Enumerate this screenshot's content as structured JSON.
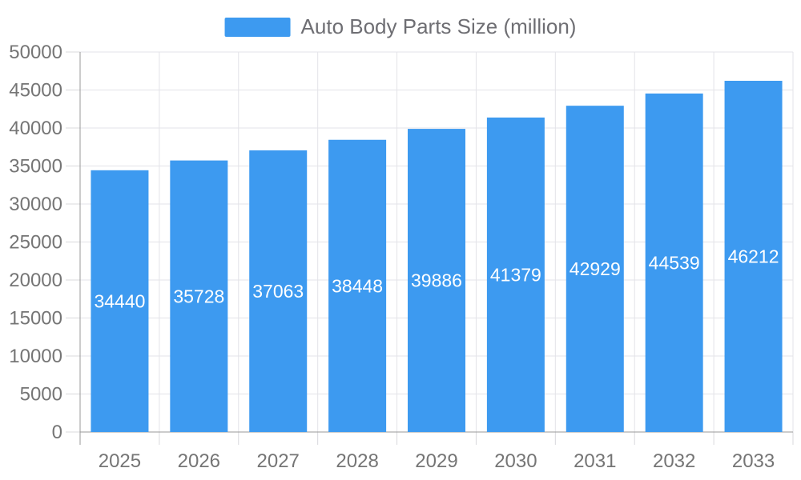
{
  "legend": {
    "label": "Auto Body Parts Size (million)"
  },
  "chart_data": {
    "type": "bar",
    "title": "Auto Body Parts Size (million)",
    "series_name": "Auto Body Parts Size (million)",
    "categories": [
      "2025",
      "2026",
      "2027",
      "2028",
      "2029",
      "2030",
      "2031",
      "2032",
      "2033"
    ],
    "values": [
      34440,
      35728,
      37063,
      38448,
      39886,
      41379,
      42929,
      44539,
      46212
    ],
    "xlabel": "",
    "ylabel": "",
    "ylim": [
      0,
      50000
    ],
    "ytick_step": 5000,
    "yticks": [
      0,
      5000,
      10000,
      15000,
      20000,
      25000,
      30000,
      35000,
      40000,
      45000,
      50000
    ],
    "grid": true,
    "legend_position": "top-center",
    "bar_labels_inside": true,
    "colors": {
      "bar": "#3D9AF0",
      "bar_label": "#FFFFFF",
      "axis_label": "#757575",
      "legend_text": "#6E6E73",
      "grid_line": "#E3E3E8",
      "axis_line": "#999999",
      "tick": "#D8D8DC",
      "background": "#FFFFFF"
    }
  }
}
